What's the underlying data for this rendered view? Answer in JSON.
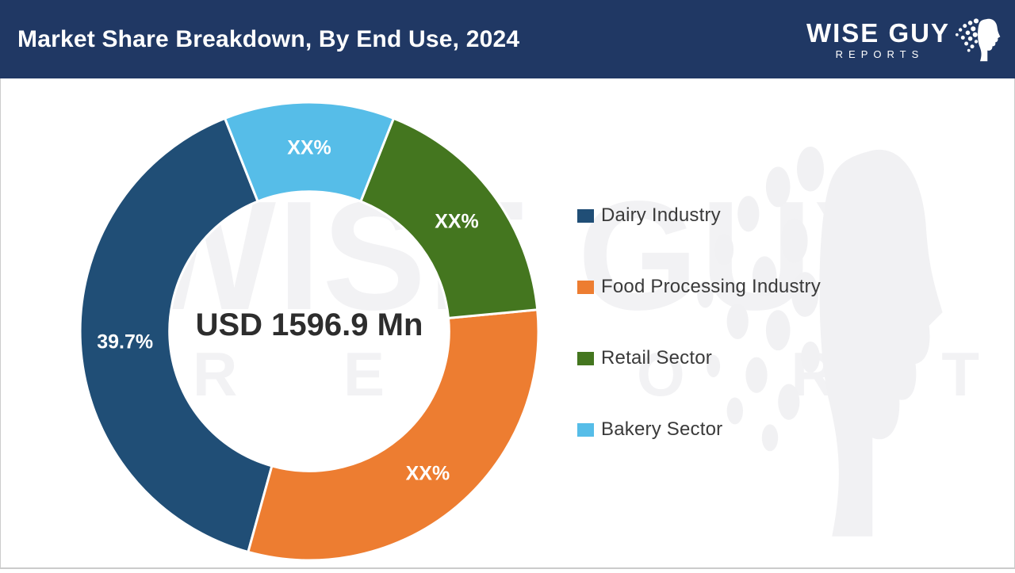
{
  "header": {
    "title": "Market Share Breakdown, By End Use, 2024",
    "bg_color": "#203864",
    "logo": {
      "line1": "WISE GUY",
      "line2": "REPORTS"
    }
  },
  "watermark": {
    "line1": "WISE GUY",
    "line2": "R E P O R T S"
  },
  "chart_data": {
    "type": "pie",
    "subtype": "donut",
    "center_label": "USD 1596.9 Mn",
    "start_angle_deg": -21.6,
    "direction": "counterclockwise",
    "inner_radius_ratio": 0.61,
    "legend_position": "right",
    "separator_color": "#ffffff",
    "slices": [
      {
        "name": "Dairy Industry",
        "label": "39.7%",
        "value": 39.7,
        "color": "#204E76"
      },
      {
        "name": "Food Processing Industry",
        "label": "XX%",
        "value": 30.8,
        "color": "#ED7D31"
      },
      {
        "name": "Retail Sector",
        "label": "XX%",
        "value": 17.5,
        "color": "#44761F"
      },
      {
        "name": "Bakery Sector",
        "label": "XX%",
        "value": 12.0,
        "color": "#56BDE8"
      }
    ]
  }
}
